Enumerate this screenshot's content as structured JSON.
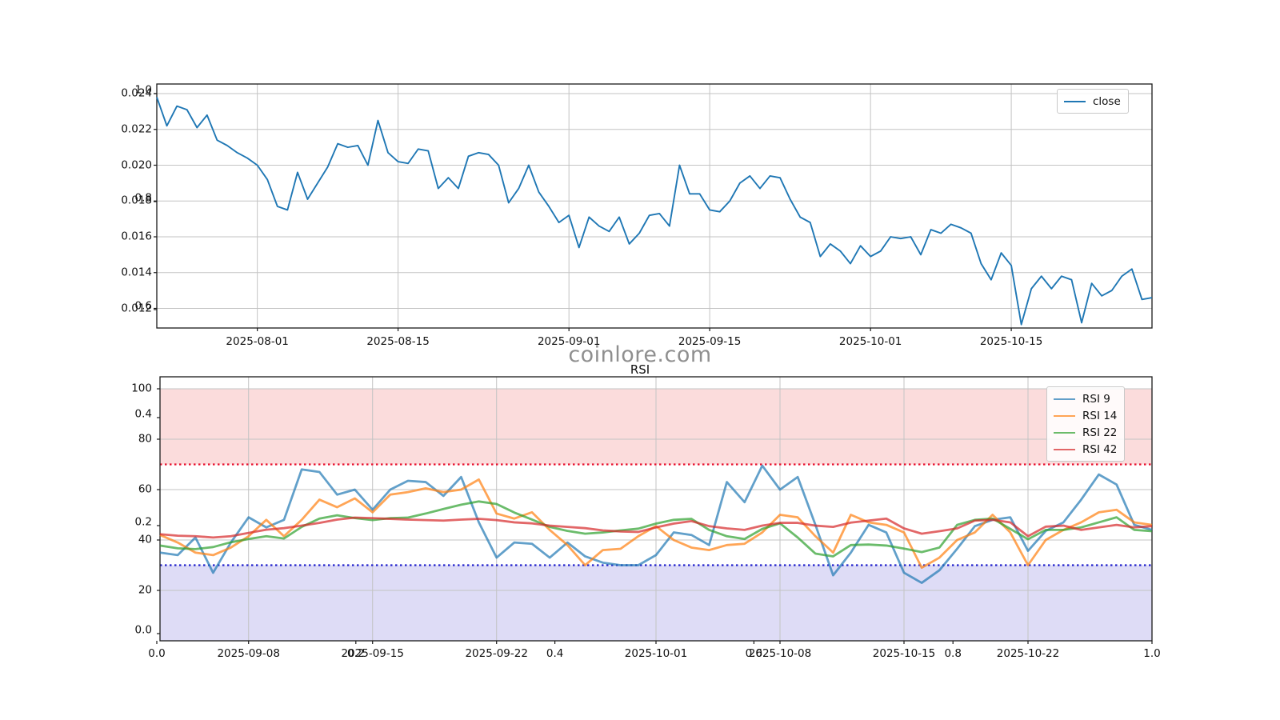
{
  "watermark": "coinlore.com",
  "colors": {
    "close_line": "#1f77b4",
    "rsi9": "rgba(31,119,180,0.7)",
    "rsi14": "rgba(255,127,14,0.7)",
    "rsi22": "rgba(44,160,44,0.7)",
    "rsi42": "rgba(214,39,40,0.7)",
    "overbought_band": "#fbdcdc",
    "oversold_band": "#dedcf6",
    "overbought_line": "#e8102d",
    "oversold_line": "#2222cc",
    "grid": "#c3c3c3",
    "spine": "#1a1a1a"
  },
  "overlay_axis": {
    "x_tick_labels": [
      "0.0",
      "0.2",
      "0.4",
      "0.6",
      "0.8",
      "1.0"
    ],
    "y_tick_labels": [
      "1.0",
      "0.8",
      "0.6",
      "0.4",
      "0.2",
      "0.0"
    ]
  },
  "chart_data": [
    {
      "type": "line",
      "title": "",
      "panel": "price",
      "legend": [
        "close"
      ],
      "legend_position": "upper right",
      "grid": true,
      "x_start_date": "2025-07-22",
      "x_tick_labels": [
        "2025-08-01",
        "2025-08-15",
        "2025-09-01",
        "2025-09-15",
        "2025-10-01",
        "2025-10-15"
      ],
      "x_tick_indices": [
        10,
        24,
        41,
        55,
        71,
        85
      ],
      "y_tick_labels": [
        "0.024",
        "0.022",
        "0.020",
        "0.018",
        "0.016",
        "0.014",
        "0.012"
      ],
      "y_ticks": [
        0.024,
        0.022,
        0.02,
        0.018,
        0.016,
        0.014,
        0.012
      ],
      "ylim": [
        0.0109,
        0.02454
      ],
      "series": [
        {
          "name": "close",
          "values": [
            0.0238,
            0.0222,
            0.0233,
            0.0231,
            0.0221,
            0.0228,
            0.0214,
            0.0211,
            0.0207,
            0.0204,
            0.02,
            0.0192,
            0.0177,
            0.0175,
            0.0196,
            0.0181,
            0.019,
            0.0199,
            0.0212,
            0.021,
            0.0211,
            0.02,
            0.0225,
            0.0207,
            0.0202,
            0.0201,
            0.0209,
            0.0208,
            0.0187,
            0.0193,
            0.0187,
            0.0205,
            0.0207,
            0.0206,
            0.02,
            0.0179,
            0.0187,
            0.02,
            0.0185,
            0.0177,
            0.0168,
            0.0172,
            0.0154,
            0.0171,
            0.0166,
            0.0163,
            0.0171,
            0.0156,
            0.0162,
            0.0172,
            0.0173,
            0.0166,
            0.02,
            0.0184,
            0.0184,
            0.0175,
            0.0174,
            0.018,
            0.019,
            0.0194,
            0.0187,
            0.0194,
            0.0193,
            0.0181,
            0.0171,
            0.0168,
            0.0149,
            0.0156,
            0.0152,
            0.0145,
            0.0155,
            0.0149,
            0.0152,
            0.016,
            0.0159,
            0.016,
            0.015,
            0.0164,
            0.0162,
            0.0167,
            0.0165,
            0.0162,
            0.0145,
            0.0136,
            0.0151,
            0.0144,
            0.0111,
            0.0131,
            0.0138,
            0.0131,
            0.0138,
            0.0136,
            0.0112,
            0.0134,
            0.0127,
            0.013,
            0.0138,
            0.0142,
            0.0125,
            0.0126
          ]
        }
      ]
    },
    {
      "type": "line",
      "title": "RSI",
      "panel": "rsi",
      "legend": [
        "RSI 9",
        "RSI 14",
        "RSI 22",
        "RSI 42"
      ],
      "legend_position": "upper right",
      "grid": true,
      "x_start_date": "2025-09-03",
      "x_tick_labels": [
        "2025-09-08",
        "2025-09-15",
        "2025-09-22",
        "2025-10-01",
        "2025-10-08",
        "2025-10-15",
        "2025-10-22"
      ],
      "x_tick_indices": [
        5,
        12,
        19,
        28,
        35,
        42,
        49
      ],
      "y_tick_labels": [
        "100",
        "80",
        "60",
        "40",
        "20"
      ],
      "y_ticks": [
        100,
        80,
        60,
        40,
        20
      ],
      "ylim": [
        0,
        104.8
      ],
      "overbought_level": 70,
      "oversold_level": 30,
      "band_top": [
        70,
        100
      ],
      "band_bottom": [
        0,
        30
      ],
      "series": [
        {
          "name": "RSI 9",
          "values": [
            35,
            34,
            41,
            27,
            39,
            49,
            45,
            48,
            68,
            67,
            58,
            60,
            52,
            60,
            63.5,
            63,
            57.5,
            65,
            47,
            33,
            39,
            38.5,
            33,
            39,
            33.5,
            31,
            30,
            30,
            34,
            43,
            42,
            38,
            63,
            55,
            69.5,
            60,
            65,
            46,
            26,
            35,
            46,
            43,
            27,
            23,
            28,
            36.5,
            45.5,
            48,
            49,
            35.7,
            43.6,
            47,
            56,
            66,
            62,
            46,
            44
          ]
        },
        {
          "name": "RSI 14",
          "values": [
            42,
            39,
            35,
            34,
            37,
            41.5,
            48,
            41.5,
            48,
            56,
            53,
            56.5,
            51,
            58,
            59,
            60.5,
            59,
            60,
            64,
            50.5,
            48.5,
            51,
            44,
            38,
            30,
            36,
            36.5,
            41.5,
            45.5,
            40,
            37,
            36,
            38,
            38.5,
            43,
            50,
            49,
            41.5,
            35,
            50,
            47,
            46,
            43,
            29,
            33,
            40,
            43,
            50,
            43,
            30,
            40,
            44,
            47,
            51,
            52,
            47,
            46
          ]
        },
        {
          "name": "RSI 22",
          "values": [
            37.8,
            36.7,
            36.4,
            37.2,
            39.1,
            40.4,
            41.5,
            40.6,
            45.2,
            48.5,
            49.8,
            48.7,
            47.9,
            48.7,
            48.9,
            50.5,
            52.3,
            54,
            55.3,
            54.3,
            50.9,
            48.1,
            45.2,
            43.6,
            42.5,
            43,
            43.8,
            44.5,
            46.5,
            48,
            48.4,
            44,
            41.5,
            40.4,
            44.4,
            46.6,
            41,
            34.6,
            33.5,
            38,
            38.2,
            37.8,
            36.6,
            35.2,
            37,
            46,
            48,
            48.5,
            44.4,
            40.3,
            44,
            44,
            45,
            47,
            49,
            44,
            43.5
          ]
        },
        {
          "name": "RSI 42",
          "values": [
            42.3,
            41.7,
            41.5,
            41,
            41.5,
            42.8,
            44.1,
            44.7,
            45.7,
            46.8,
            48.1,
            48.9,
            48.7,
            48.4,
            48.1,
            47.9,
            47.7,
            48.1,
            48.4,
            47.9,
            47,
            46.6,
            45.7,
            45.2,
            44.7,
            43.8,
            43.4,
            43.2,
            45,
            46.5,
            47.5,
            45.5,
            44.6,
            44,
            45.7,
            46.8,
            46.8,
            45.7,
            45.2,
            46.9,
            47.7,
            48.5,
            44.6,
            42.5,
            43.5,
            44.6,
            47.7,
            48,
            47,
            41.5,
            45.3,
            45.7,
            44,
            45,
            46,
            45,
            45.5
          ]
        }
      ]
    }
  ]
}
